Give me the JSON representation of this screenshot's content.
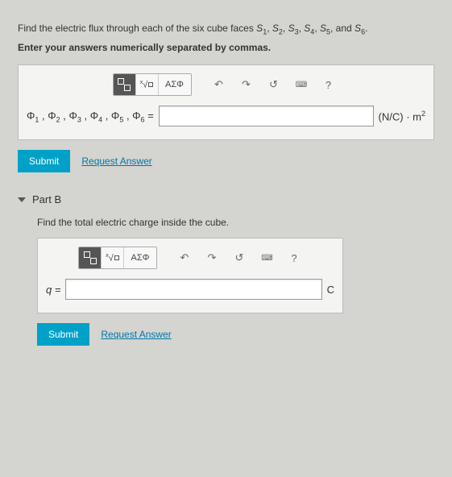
{
  "partA": {
    "question_line1_pre": "Find the electric flux through each of the six cube faces ",
    "faces": [
      "S",
      "S",
      "S",
      "S",
      "S",
      "S"
    ],
    "face_subs": [
      "1",
      "2",
      "3",
      "4",
      "5",
      "6"
    ],
    "question_line1_post": ".",
    "question_line2": "Enter your answers numerically separated by commas.",
    "toolbar": {
      "frac_label": "▮",
      "rad_label": "√",
      "greek_label": "ΑΣΦ",
      "undo": "↶",
      "redo": "↷",
      "reset": "↺",
      "keyboard": "⌨",
      "help": "?"
    },
    "lhs_symbol": "Φ",
    "lhs_subs": [
      "1",
      "2",
      "3",
      "4",
      "5",
      "6"
    ],
    "equals": "=",
    "input_value": "",
    "units_pre": "(N/C) · m",
    "units_sup": "2",
    "submit": "Submit",
    "request": "Request Answer"
  },
  "partB": {
    "header": "Part B",
    "question": "Find the total electric charge inside the cube.",
    "toolbar": {
      "greek_label": "ΑΣΦ",
      "undo": "↶",
      "redo": "↷",
      "reset": "↺",
      "keyboard": "⌨",
      "help": "?"
    },
    "lhs": "q =",
    "input_value": "",
    "units": "C",
    "submit": "Submit",
    "request": "Request Answer"
  },
  "colors": {
    "submit_bg": "#00a1c9",
    "link": "#0077aa",
    "page_bg": "#d4d4d0"
  }
}
